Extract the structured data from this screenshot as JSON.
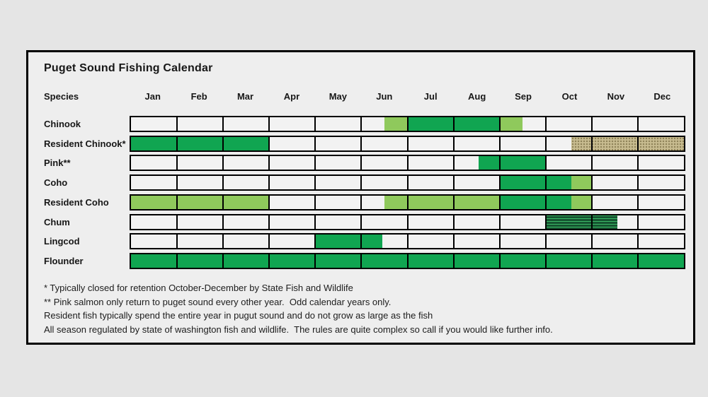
{
  "page": {
    "background": "#e5e5e5",
    "panel_background": "#eeeeee",
    "border_color": "#000000"
  },
  "panel": {
    "title": "Puget Sound Fishing Calendar"
  },
  "header": {
    "species_label": "Species",
    "months": [
      "Jan",
      "Feb",
      "Mar",
      "Apr",
      "May",
      "Jun",
      "Jul",
      "Aug",
      "Sep",
      "Oct",
      "Nov",
      "Dec"
    ]
  },
  "palette": {
    "green": "#10A551",
    "light_green": "#8FC95C",
    "tan_dotted": "#C8BC90",
    "tan_dot": "#8D8157",
    "dark_green": "#155430",
    "dark_stripe": "#3DBA67",
    "empty_cell": "#F2F2F2",
    "border": "#000000"
  },
  "footnotes": [
    "* Typically closed for retention October-December by State Fish and Wildlife",
    "** Pink salmon only return to puget sound every other year.  Odd calendar years only.",
    "Resident fish typically spend the entire year in pugut sound and do not grow as large as the fish",
    "All season regulated by state of washington fish and wildlife.  The rules are quite complex so call if you would like further info."
  ],
  "chart_data": {
    "type": "heatmap",
    "title": "Puget Sound Fishing Calendar",
    "x_categories": [
      "Jan",
      "Feb",
      "Mar",
      "Apr",
      "May",
      "Jun",
      "Jul",
      "Aug",
      "Sep",
      "Oct",
      "Nov",
      "Dec"
    ],
    "y_categories": [
      "Chinook",
      "Resident Chinook*",
      "Pink**",
      "Coho",
      "Resident Coho",
      "Chum",
      "Lingcod",
      "Flounder"
    ],
    "axis_note": "segments measured in months from start of Jan (0) to end of Dec (12)",
    "fill_styles": [
      "green",
      "light_green",
      "tan_dotted",
      "dark_green_striped"
    ],
    "rows": [
      {
        "species": "Chinook",
        "segments": [
          {
            "start": 5.5,
            "end": 6,
            "fill": "light_green"
          },
          {
            "start": 6,
            "end": 8,
            "fill": "green"
          },
          {
            "start": 8,
            "end": 8.5,
            "fill": "light_green"
          }
        ]
      },
      {
        "species": "Resident Chinook*",
        "segments": [
          {
            "start": 0,
            "end": 3,
            "fill": "green"
          },
          {
            "start": 9.55,
            "end": 12,
            "fill": "tan_dotted"
          }
        ]
      },
      {
        "species": "Pink**",
        "segments": [
          {
            "start": 7.55,
            "end": 9,
            "fill": "green"
          }
        ]
      },
      {
        "species": "Coho",
        "segments": [
          {
            "start": 8,
            "end": 9.55,
            "fill": "green"
          },
          {
            "start": 9.55,
            "end": 10,
            "fill": "light_green"
          }
        ]
      },
      {
        "species": "Resident Coho",
        "segments": [
          {
            "start": 0,
            "end": 3,
            "fill": "light_green"
          },
          {
            "start": 5.5,
            "end": 8,
            "fill": "light_green"
          },
          {
            "start": 8,
            "end": 9.55,
            "fill": "green"
          },
          {
            "start": 9.55,
            "end": 10,
            "fill": "light_green"
          }
        ]
      },
      {
        "species": "Chum",
        "segments": [
          {
            "start": 9,
            "end": 10.55,
            "fill": "dark_green_striped"
          }
        ]
      },
      {
        "species": "Lingcod",
        "segments": [
          {
            "start": 4,
            "end": 5.45,
            "fill": "green"
          }
        ]
      },
      {
        "species": "Flounder",
        "segments": [
          {
            "start": 0,
            "end": 12,
            "fill": "green"
          }
        ]
      }
    ]
  }
}
